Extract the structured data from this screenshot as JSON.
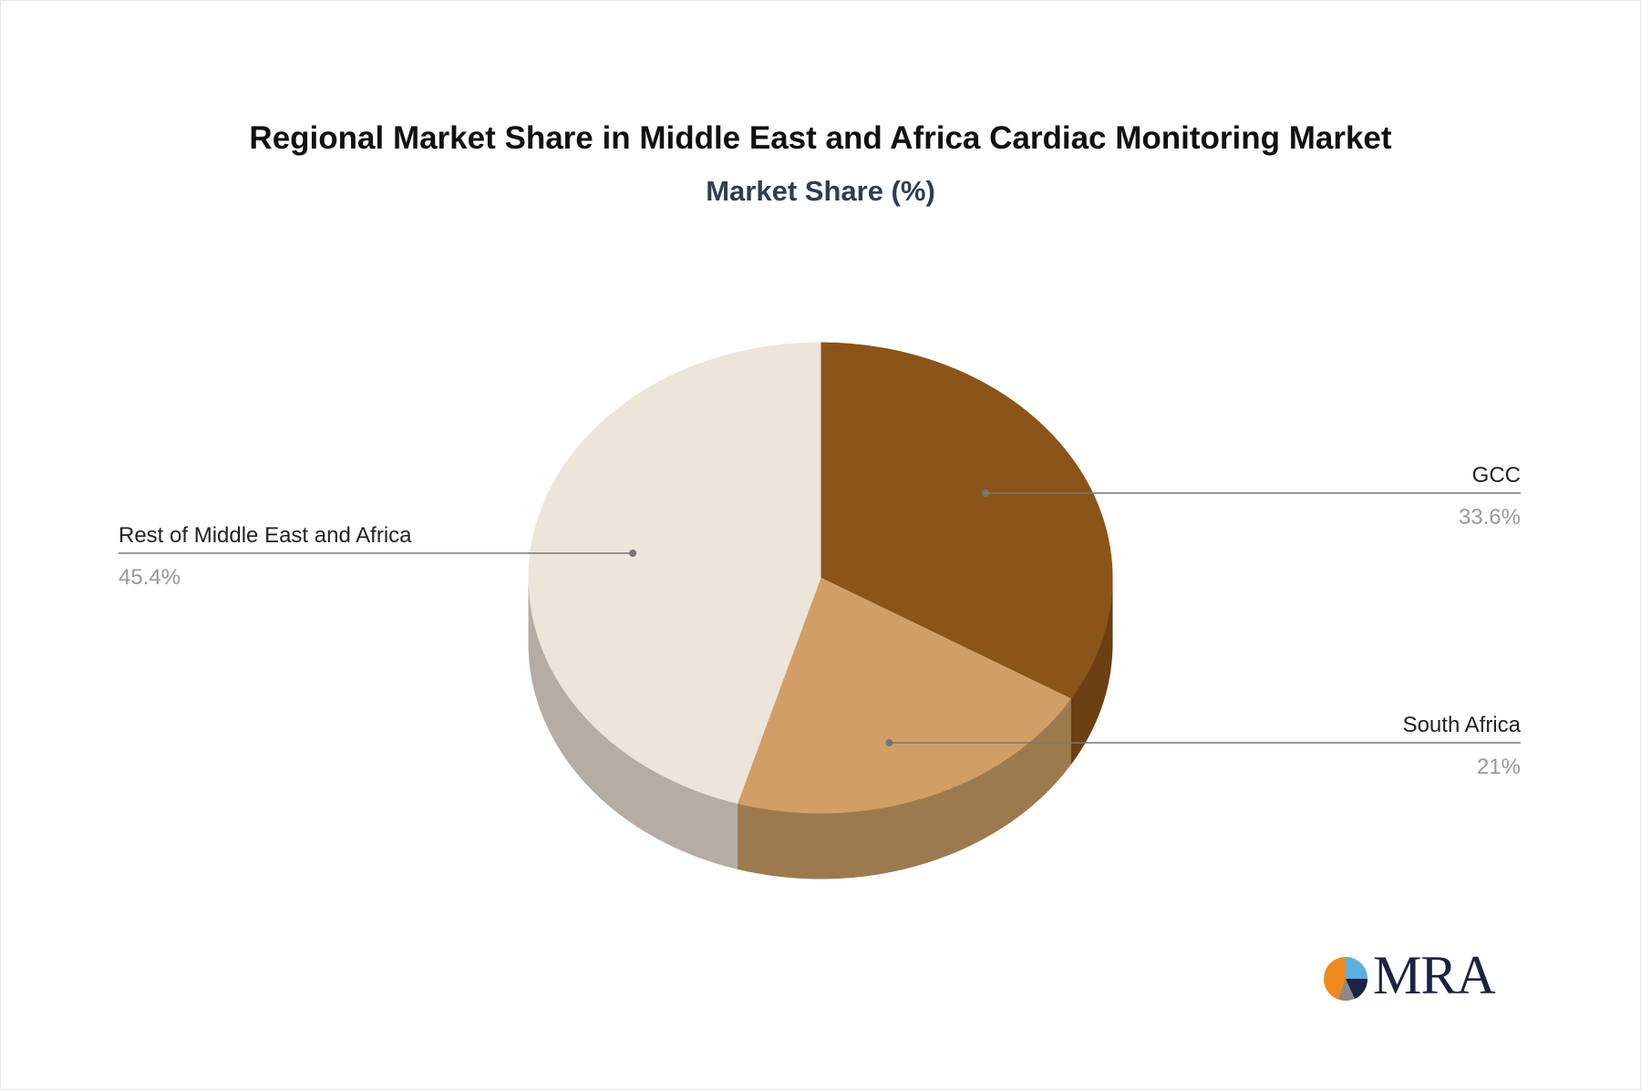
{
  "chart_data": {
    "type": "pie",
    "title": "Regional Market Share in Middle East and Africa Cardiac Monitoring Market",
    "subtitle": "Market Share (%)",
    "slices": [
      {
        "label": "GCC",
        "value": 33.6,
        "display": "33.6%",
        "color": "#8b5419",
        "side_color": "#6b3f12"
      },
      {
        "label": "South Africa",
        "value": 21,
        "display": "21%",
        "color": "#d19f66",
        "side_color": "#9c7a4e"
      },
      {
        "label": "Rest of Middle East and Africa",
        "value": 45.4,
        "display": "45.4%",
        "color": "#ede4da",
        "side_color": "#b5aca4"
      }
    ],
    "label_color": "#222222",
    "value_color": "#999999",
    "leader_color": "#777777"
  },
  "logo": {
    "text": "MRA",
    "colors": [
      "#f08a1c",
      "#5ab0e0",
      "#1c2340"
    ]
  }
}
